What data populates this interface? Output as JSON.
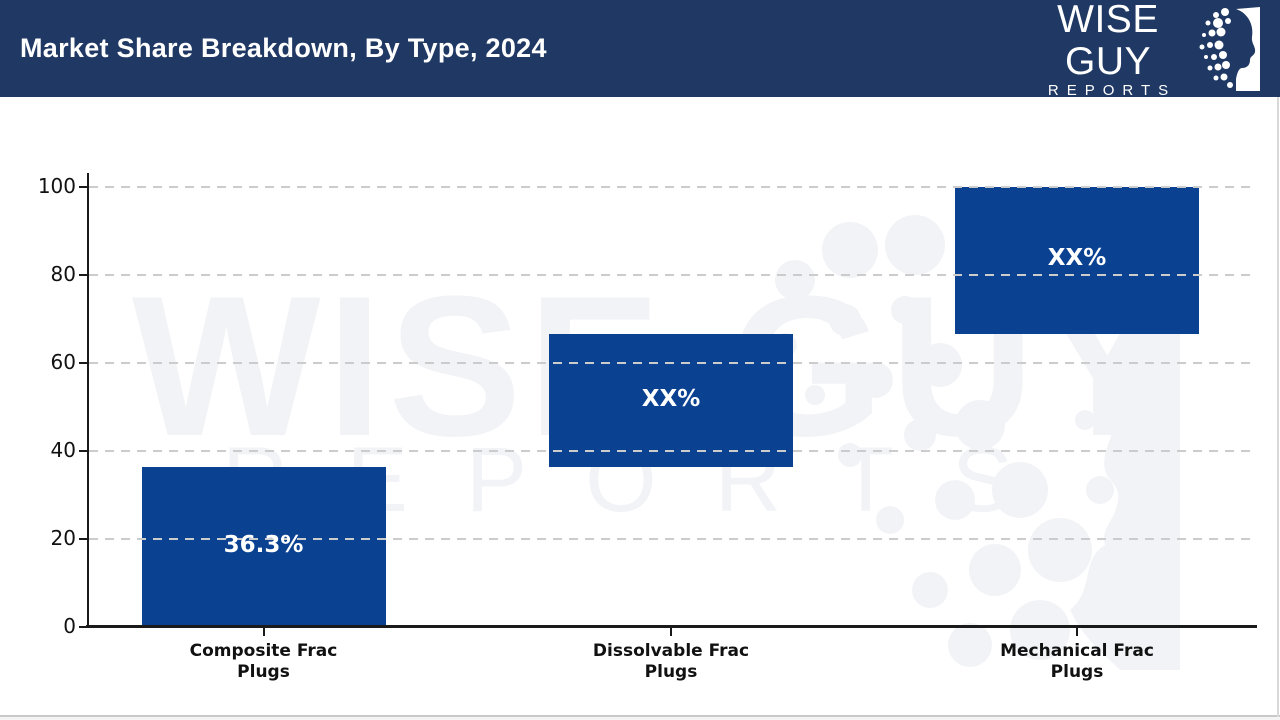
{
  "header": {
    "title": "Market Share Breakdown, By Type, 2024"
  },
  "logo": {
    "brand_line1": "WISE GUY",
    "brand_line2": "REPORTS",
    "head_icon": "dotted-head-profile-icon"
  },
  "watermark": {
    "line1": "WISE GUY",
    "line2": "REPORTS"
  },
  "chart_data": {
    "type": "bar",
    "subtype": "waterfall-stacked-percentage",
    "title": "Market Share Breakdown, By Type, 2024",
    "categories": [
      "Composite Frac Plugs",
      "Dissolvable Frac Plugs",
      "Mechanical Frac Plugs"
    ],
    "segments": [
      {
        "category": "Composite Frac Plugs",
        "from": 0,
        "to": 36.3,
        "label": "36.3%"
      },
      {
        "category": "Dissolvable Frac Plugs",
        "from": 36.3,
        "to": 66.6,
        "label": "XX%"
      },
      {
        "category": "Mechanical Frac Plugs",
        "from": 66.6,
        "to": 100,
        "label": "XX%"
      }
    ],
    "ylim": [
      0,
      100
    ],
    "yticks": [
      0,
      20,
      40,
      60,
      80,
      100
    ],
    "xlabel": "",
    "ylabel": "",
    "grid": "dashed-horizontal",
    "legend": "none",
    "bar_color": "#0a4191",
    "bar_label_color": "#ffffff",
    "colors": {
      "header_bg": "#1f3864",
      "header_text": "#ffffff",
      "axis": "#1a1a1a",
      "gridline": "#cccccc",
      "tick_text": "#111111",
      "watermark": "#f2f3f6"
    }
  }
}
